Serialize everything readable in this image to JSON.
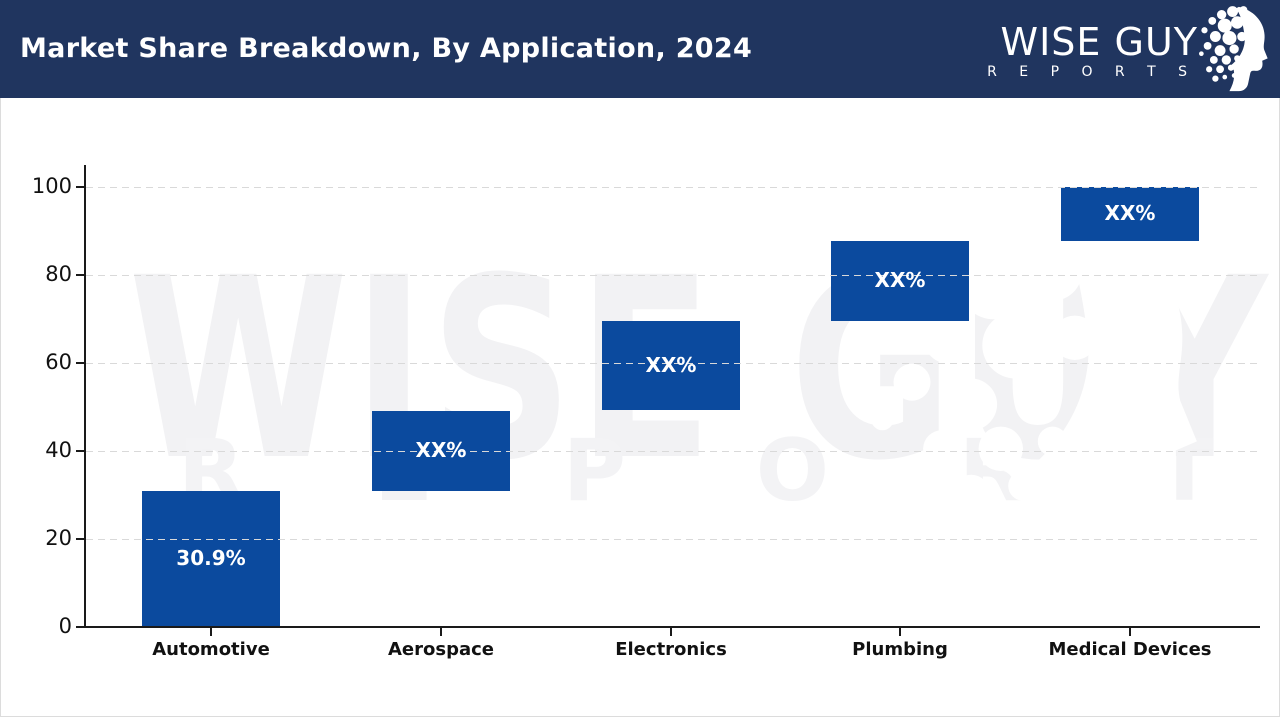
{
  "header": {
    "title": "Market Share Breakdown, By Application, 2024",
    "bg_color": "#20355f",
    "logo": {
      "line1": "WISE GUY",
      "line2": "R E P O R T S"
    }
  },
  "watermark": {
    "line1": "WISE GUY",
    "line2": "R E P O R T S"
  },
  "chart_data": {
    "type": "bar",
    "subtype": "waterfall",
    "title": "Market Share Breakdown, By Application, 2024",
    "categories": [
      "Automotive",
      "Aerospace",
      "Electronics",
      "Plumbing",
      "Medical Devices"
    ],
    "segments": [
      {
        "category": "Automotive",
        "start": 0,
        "end": 30.9,
        "label": "30.9%"
      },
      {
        "category": "Aerospace",
        "start": 30.9,
        "end": 49.2,
        "label": "XX%"
      },
      {
        "category": "Electronics",
        "start": 49.2,
        "end": 69.5,
        "label": "XX%"
      },
      {
        "category": "Plumbing",
        "start": 69.5,
        "end": 87.7,
        "label": "XX%"
      },
      {
        "category": "Medical Devices",
        "start": 87.7,
        "end": 100,
        "label": "XX%"
      }
    ],
    "xlabel": "",
    "ylabel": "",
    "ylim": [
      0,
      100
    ],
    "yticks": [
      0,
      20,
      40,
      60,
      80,
      100
    ],
    "grid": "horizontal-dashed-above-bars",
    "legend": "none",
    "bar_color": "#0b4a9e",
    "bar_label_color": "#ffffff",
    "axis_color": "#1a1a1a",
    "gridline_color": "#d9d9d9"
  }
}
